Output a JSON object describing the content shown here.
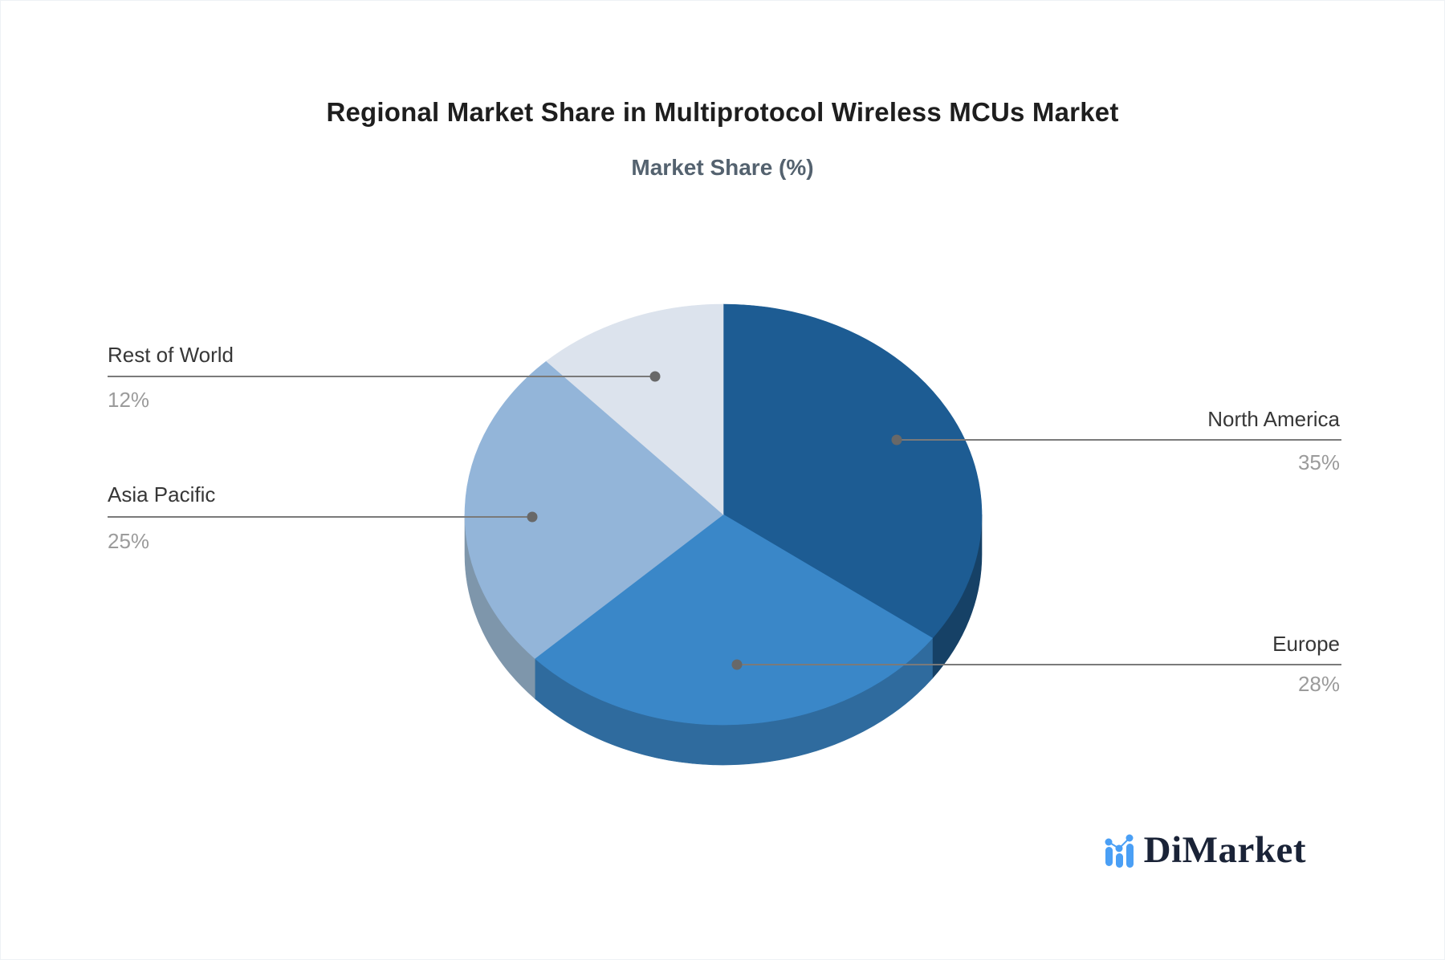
{
  "page": {
    "title": "Regional Market Share in Multiprotocol Wireless MCUs Market",
    "subtitle": "Market Share (%)"
  },
  "chart_data": {
    "type": "pie",
    "style": "3d-pie",
    "title": "Regional Market Share in Multiprotocol Wireless MCUs Market",
    "subtitle": "Market Share (%)",
    "unit": "percent",
    "start_angle": "12-oclock",
    "direction": "clockwise",
    "legend_position": "callout-labels",
    "slices": [
      {
        "id": "north-america",
        "label": "North America",
        "value": 35,
        "value_label": "35%",
        "top_color": "#1d5c93",
        "side_color": "#164166",
        "callout_side": "right"
      },
      {
        "id": "europe",
        "label": "Europe",
        "value": 28,
        "value_label": "28%",
        "top_color": "#3a87c8",
        "side_color": "#2f6b9e",
        "callout_side": "right"
      },
      {
        "id": "asia-pacific",
        "label": "Asia Pacific",
        "value": 25,
        "value_label": "25%",
        "top_color": "#93b5d9",
        "side_color": "#7e96ab",
        "callout_side": "left"
      },
      {
        "id": "rest-of-world",
        "label": "Rest of World",
        "value": 12,
        "value_label": "12%",
        "top_color": "#dce3ed",
        "side_color": "#c3cdda",
        "callout_side": "left"
      }
    ],
    "callout_line_color": "#7a7a7a",
    "callout_dot_color": "#686868",
    "label_color": "#373737",
    "value_color": "#9b9b9b"
  },
  "branding": {
    "logo_text": "DiMarket",
    "logo_icon": "mini-bar-line-chart-icon",
    "logo_text_color": "#1a2337",
    "logo_icon_color": "#4a9ff5"
  }
}
